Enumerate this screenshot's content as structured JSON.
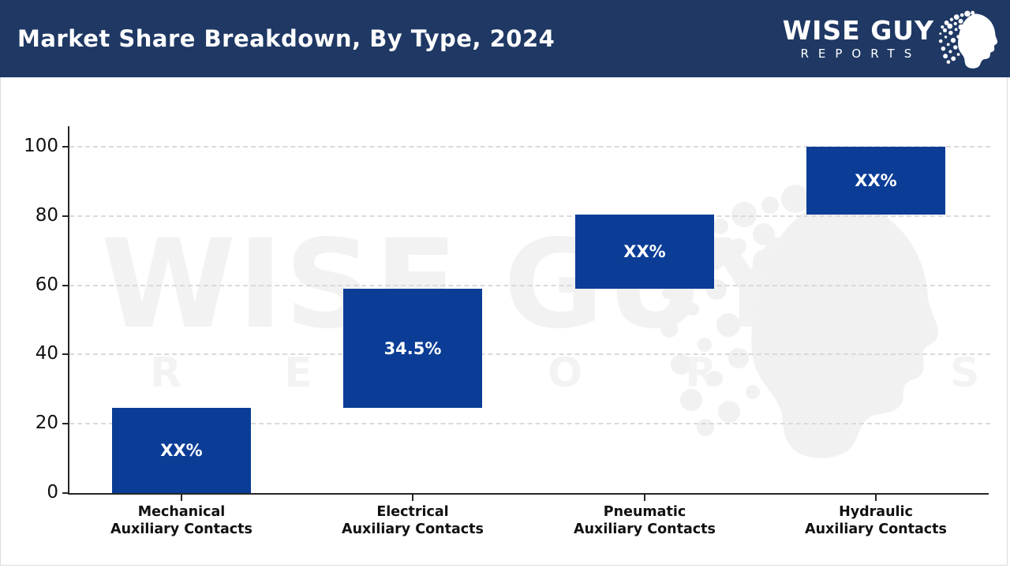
{
  "header": {
    "title": "Market Share Breakdown, By Type, 2024",
    "logo": {
      "line1": "WISE GUY",
      "line2": "REPORTS"
    }
  },
  "watermark": {
    "line1": "WISE GUY",
    "line2": "R E P O R T S"
  },
  "colors": {
    "header_bg": "#1f3864",
    "bar": "#0b3d96",
    "axis": "#262626",
    "grid": "#dadada",
    "bar_label": "#ffffff",
    "watermark": "#f2f2f2"
  },
  "chart_data": {
    "type": "bar",
    "subtype": "floating-segment (waterfall style, segments stack to 100%)",
    "title": "Market Share Breakdown, By Type, 2024",
    "xlabel": "",
    "ylabel": "",
    "ylim": [
      0,
      105
    ],
    "yticks": [
      0,
      20,
      40,
      60,
      80,
      100
    ],
    "grid": "horizontal dashed",
    "legend": "none",
    "categories": [
      [
        "Mechanical",
        "Auxiliary Contacts"
      ],
      [
        "Electrical",
        "Auxiliary Contacts"
      ],
      [
        "Pneumatic",
        "Auxiliary Contacts"
      ],
      [
        "Hydraulic",
        "Auxiliary Contacts"
      ]
    ],
    "bars": [
      {
        "category": "Mechanical Auxiliary Contacts",
        "label": "XX%",
        "start": 0,
        "end": 24.5
      },
      {
        "category": "Electrical Auxiliary Contacts",
        "label": "34.5%",
        "start": 24.5,
        "end": 59,
        "value": 34.5
      },
      {
        "category": "Pneumatic Auxiliary Contacts",
        "label": "XX%",
        "start": 59,
        "end": 80.5
      },
      {
        "category": "Hydraulic Auxiliary Contacts",
        "label": "XX%",
        "start": 80.5,
        "end": 100
      }
    ]
  }
}
